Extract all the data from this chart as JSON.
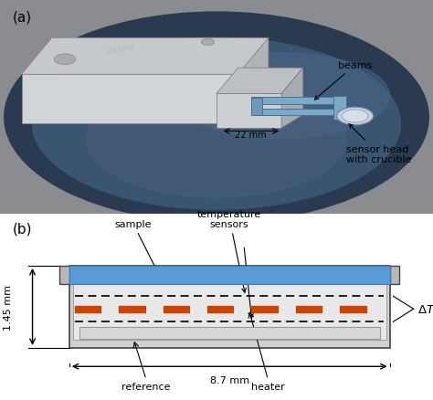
{
  "fig_width": 4.74,
  "fig_height": 4.39,
  "dpi": 100,
  "panel_a_label": "(a)",
  "panel_b_label": "(b)",
  "bg_color": "#ffffff",
  "photo": {
    "bg_outer": "#7a8090",
    "bg_dish_dark": "#3a5070",
    "bg_dish_mid": "#4a6890",
    "bg_dish_light": "#5a80b0",
    "metal_top": "#c8cdd3",
    "metal_front": "#d5d9de",
    "metal_side": "#a8adb3",
    "metal_inner": "#b8bcc2",
    "sensor_box": "#b0bcc8",
    "beam_color": "#88aac8",
    "beam_dark": "#5a80a0",
    "crucible_color": "#c0ccd8",
    "screw_color": "#aaaaaa"
  },
  "diagram": {
    "outer_box_fill": "#d0d0d0",
    "outer_box_edge": "#444444",
    "tab_fill": "#b8b8b8",
    "inner_fill": "#e8e8e8",
    "inner_edge": "#888888",
    "sample_fill": "#5b9bd5",
    "sample_edge": "#3a7ab8",
    "dashed_color": "#111111",
    "orange_color": "#cc4400",
    "heater_ref_fill": "#d8d8d8",
    "heater_ref_edge": "#999999",
    "label_sample": "sample",
    "label_temp": "temperature\nsensors",
    "label_ref": "reference",
    "label_heater": "heater",
    "dim_145": "1.45 mm",
    "dim_87": "8.7 mm"
  }
}
